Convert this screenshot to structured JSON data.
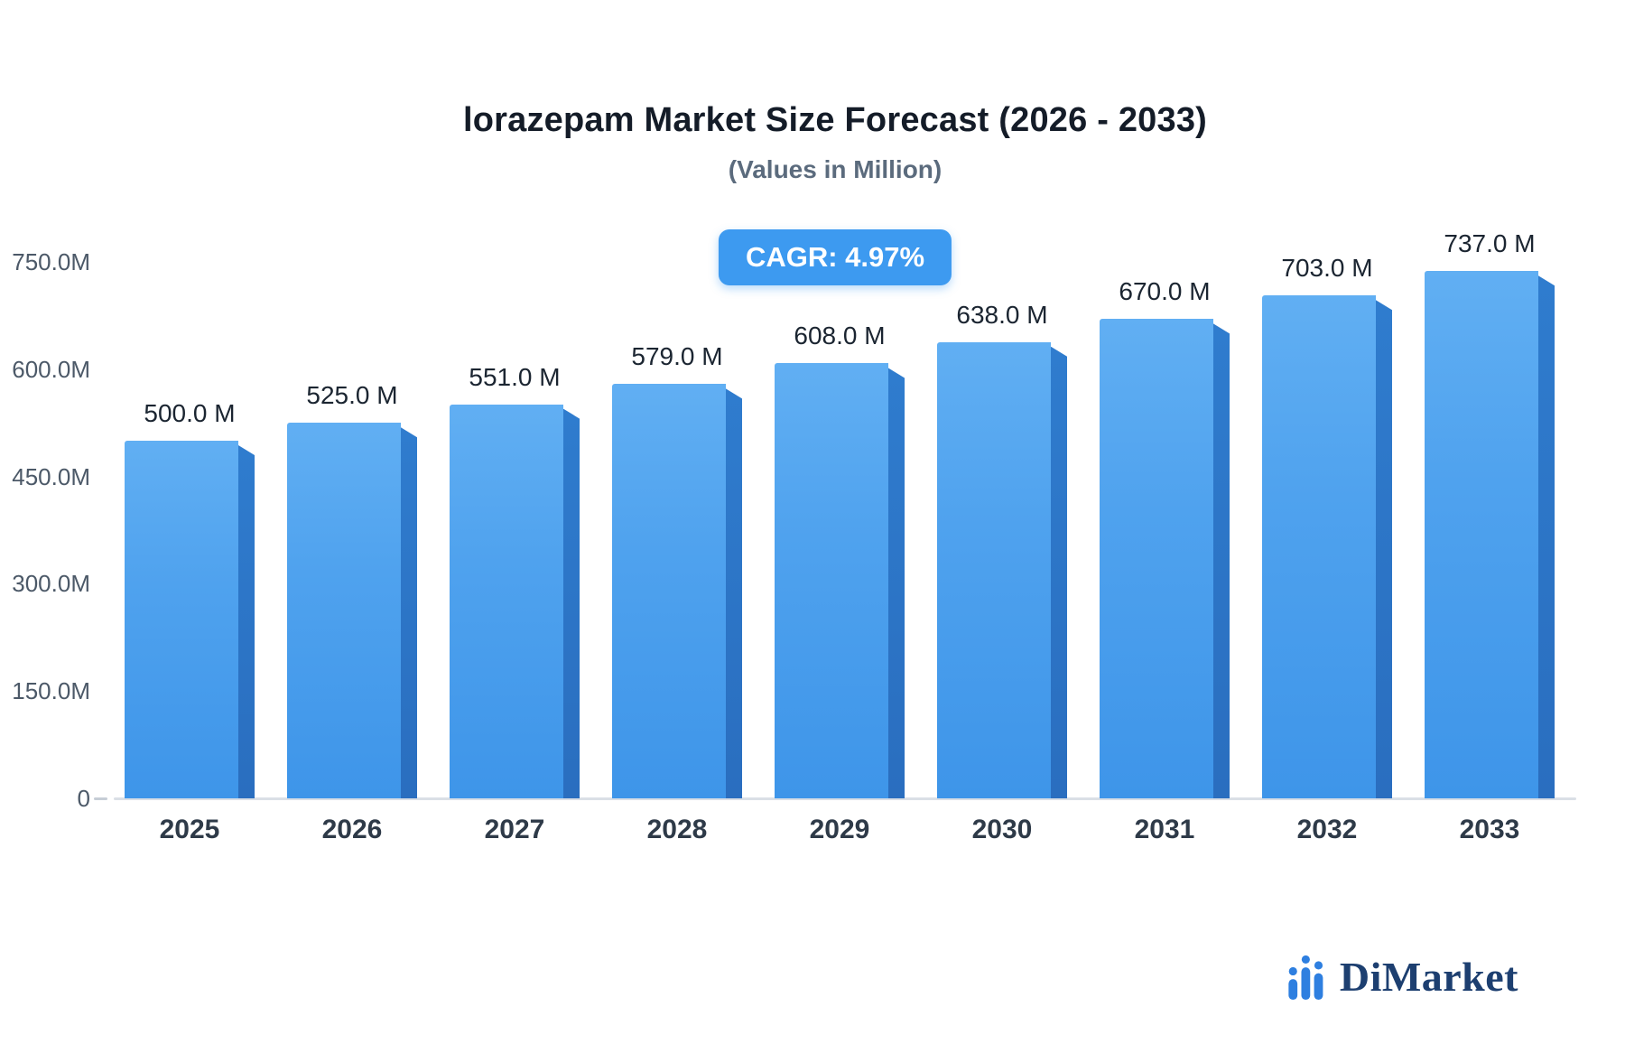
{
  "header": {
    "title": "lorazepam Market Size Forecast (2026 - 2033)",
    "subtitle": "(Values in Million)",
    "cagr_label": "CAGR: 4.97%"
  },
  "chart_data": {
    "type": "bar",
    "title": "lorazepam Market Size Forecast (2026 - 2033)",
    "subtitle": "(Values in Million)",
    "xlabel": "",
    "ylabel": "",
    "categories": [
      "2025",
      "2026",
      "2027",
      "2028",
      "2029",
      "2030",
      "2031",
      "2032",
      "2033"
    ],
    "values": [
      500.0,
      525.0,
      551.0,
      579.0,
      608.0,
      638.0,
      670.0,
      703.0,
      737.0
    ],
    "value_labels": [
      "500.0 M",
      "525.0 M",
      "551.0 M",
      "579.0 M",
      "608.0 M",
      "638.0 M",
      "670.0 M",
      "703.0 M",
      "737.0 M"
    ],
    "ylim": [
      0,
      750
    ],
    "y_ticks": [
      {
        "value": 750,
        "label": "750.0M"
      },
      {
        "value": 600,
        "label": "600.0M"
      },
      {
        "value": 450,
        "label": "450.0M"
      },
      {
        "value": 300,
        "label": "300.0M"
      },
      {
        "value": 150,
        "label": "150.0M"
      },
      {
        "value": 0,
        "label": "0"
      }
    ],
    "grid": false,
    "legend": false,
    "colors": {
      "bar_top": "#61AFF3",
      "bar_bottom": "#3E95E9",
      "bar_side": "#2B70C2",
      "badge_bg": "#3D9AF0",
      "axis_line": "#DADFE6"
    }
  },
  "footer": {
    "logo_text": "DiMarket",
    "logo_icon": "bar-chart-icon",
    "logo_color": "#1D3F70",
    "logo_icon_color": "#2E7FE0"
  }
}
